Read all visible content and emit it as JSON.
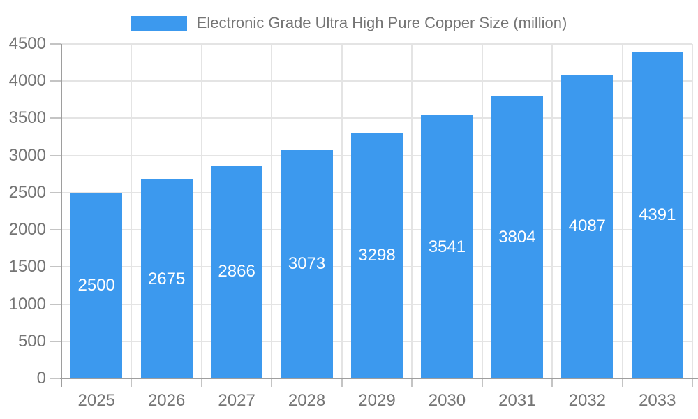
{
  "colors": {
    "bar": "#3C99EE",
    "bar_label": "#FFFFFF",
    "axis_line": "#9E9E9E",
    "tick": "#C4C4C4",
    "gridline": "#E4E4E4",
    "axis_text": "#757575",
    "background": "#FFFFFF"
  },
  "legend": {
    "label": "Electronic Grade Ultra High Pure Copper Size (million)"
  },
  "chart_data": {
    "type": "bar",
    "title": "Electronic Grade Ultra High Pure Copper Size (million)",
    "categories": [
      "2025",
      "2026",
      "2027",
      "2028",
      "2029",
      "2030",
      "2031",
      "2032",
      "2033"
    ],
    "values": [
      2500,
      2675,
      2866,
      3073,
      3298,
      3541,
      3804,
      4087,
      4391
    ],
    "xlabel": "",
    "ylabel": "",
    "ylim": [
      0,
      4500
    ],
    "ytick_step": 500,
    "yticks": [
      0,
      500,
      1000,
      1500,
      2000,
      2500,
      3000,
      3500,
      4000,
      4500
    ],
    "grid": true,
    "legend_position": "top-center",
    "bar_labels_inside": true,
    "bar_label_position": "center"
  }
}
